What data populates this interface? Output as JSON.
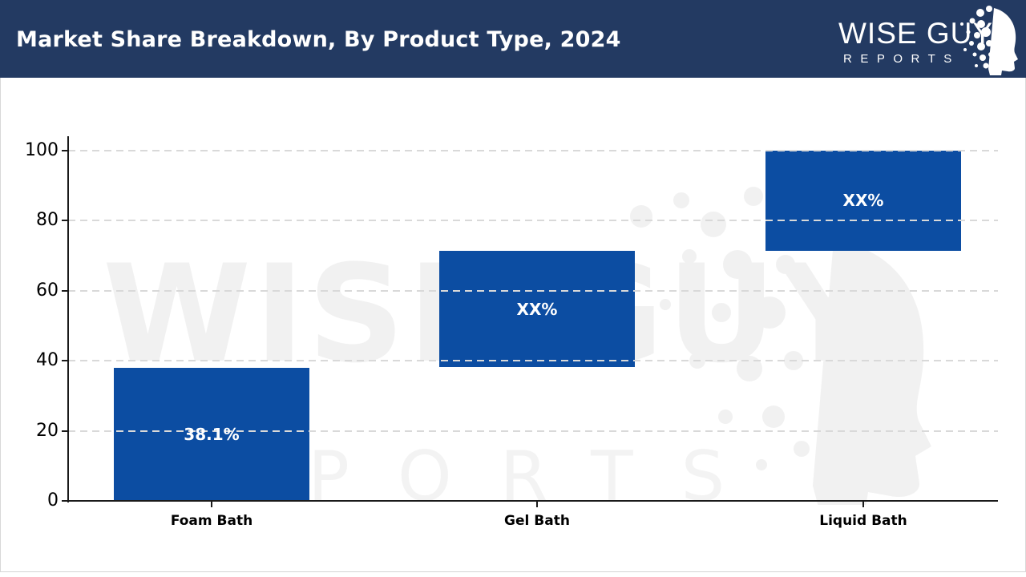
{
  "header": {
    "title": "Market Share Breakdown, By Product Type, 2024",
    "bg_color": "#233a62",
    "logo": {
      "wordmark": "WISE GUY",
      "subtext": "REPORTS"
    }
  },
  "watermark": {
    "wordmark": "WISE GUY",
    "subtext": "REPORTS"
  },
  "colors": {
    "bar": "#0c4da2",
    "grid": "#d9d9d9",
    "axis": "#1a1a1a",
    "bar_label": "#ffffff",
    "watermark": "#f1f1f1",
    "frame": "#d8d8d8"
  },
  "chart_data": {
    "type": "bar",
    "subtype": "floating-range (waterfall of market share segments)",
    "title": "Market Share Breakdown, By Product Type, 2024",
    "categories": [
      "Foam Bath",
      "Gel Bath",
      "Liquid Bath"
    ],
    "bars": [
      {
        "category": "Foam Bath",
        "from": 0,
        "to": 38.1,
        "label": "38.1%"
      },
      {
        "category": "Gel Bath",
        "from": 38.1,
        "to": 71.5,
        "label": "XX%"
      },
      {
        "category": "Liquid Bath",
        "from": 71.5,
        "to": 100,
        "label": "XX%"
      }
    ],
    "yticks": [
      0,
      20,
      40,
      60,
      80,
      100
    ],
    "ylim": [
      0,
      104
    ],
    "xlabel": "",
    "ylabel": "",
    "grid": "horizontal dashed lines, drawn above bars",
    "legend": "none"
  }
}
